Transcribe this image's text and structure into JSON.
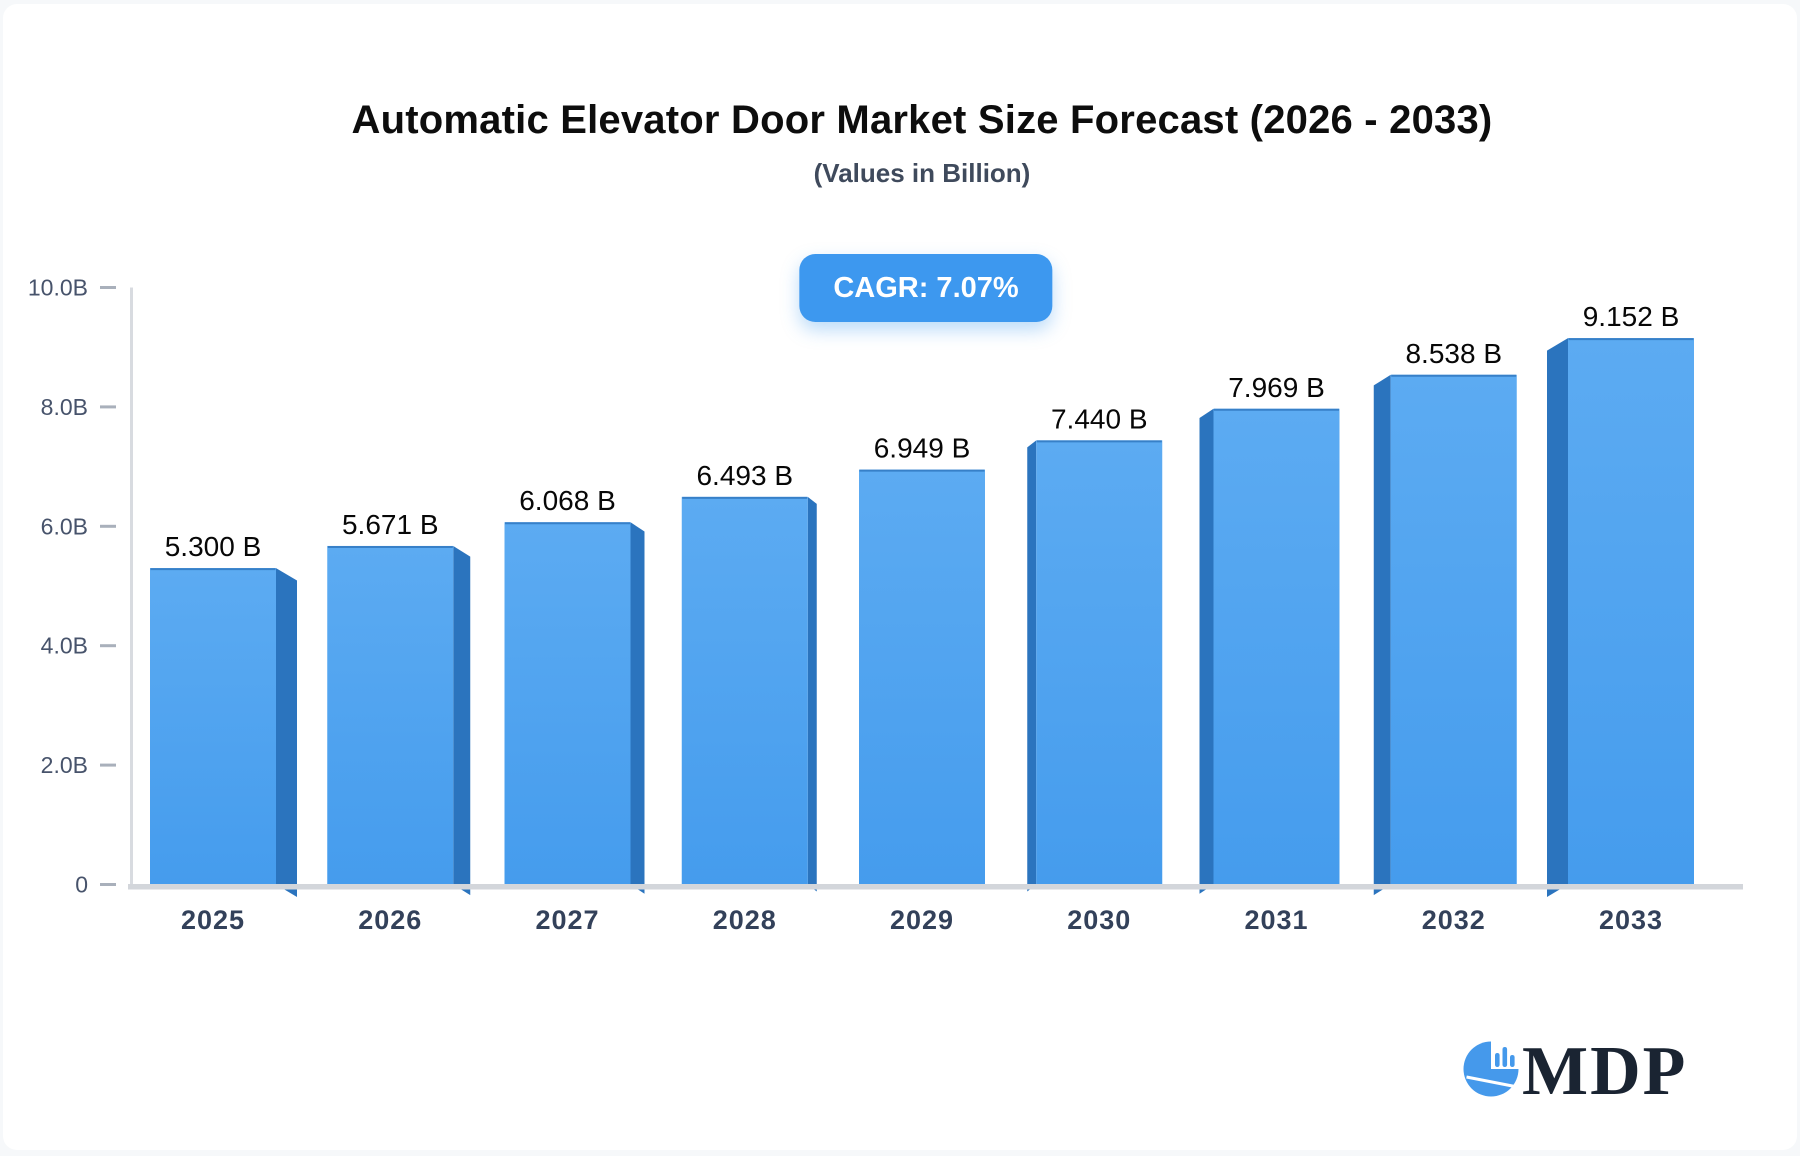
{
  "chart_data": {
    "type": "bar",
    "title": "Automatic Elevator Door Market Size Forecast (2026 - 2033)",
    "subtitle": "(Values in Billion)",
    "annotation": "CAGR: 7.07%",
    "categories": [
      "2025",
      "2026",
      "2027",
      "2028",
      "2029",
      "2030",
      "2031",
      "2032",
      "2033"
    ],
    "values": [
      5.3,
      5.671,
      6.068,
      6.493,
      6.949,
      7.44,
      7.969,
      8.538,
      9.152
    ],
    "value_labels": [
      "5.300 B",
      "5.671 B",
      "6.068 B",
      "6.493 B",
      "6.949 B",
      "7.440 B",
      "7.969 B",
      "8.538 B",
      "9.152 B"
    ],
    "y_ticks": [
      {
        "value": 0,
        "label": "0"
      },
      {
        "value": 2,
        "label": "2.0B"
      },
      {
        "value": 4,
        "label": "4.0B"
      },
      {
        "value": 6,
        "label": "6.0B"
      },
      {
        "value": 8,
        "label": "8.0B"
      },
      {
        "value": 10,
        "label": "10.0B"
      }
    ],
    "ylim": [
      0,
      10
    ],
    "xlabel": "",
    "ylabel": "",
    "grid": false,
    "legend": false,
    "projection": "3d-bars-center-vanishing-point",
    "colors": {
      "bar_front_top": "#5cabf2",
      "bar_front_bottom": "#459ced",
      "bar_side": "#2b74be",
      "bar_top_edge": "#3780c8",
      "axis_line": "#d8dbe0",
      "baseline": "#d3d6db",
      "tick_dash": "#a9b0bb",
      "y_tick_label": "#47536b",
      "category_label": "#33415a",
      "value_label": "#070707",
      "badge_bg": "#3d98ef",
      "badge_text": "#ffffff"
    }
  },
  "logo": {
    "text": "MDP",
    "mark_color": "#4599eb",
    "text_color": "#1a2432"
  }
}
